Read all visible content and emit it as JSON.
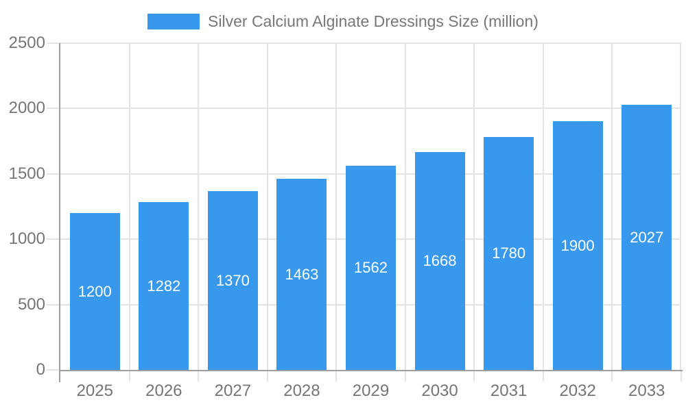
{
  "legend": {
    "items": [
      {
        "label": "Silver Calcium Alginate Dressings Size (million)",
        "color": "#3899EC"
      }
    ]
  },
  "chart_data": {
    "type": "bar",
    "categories": [
      "2025",
      "2026",
      "2027",
      "2028",
      "2029",
      "2030",
      "2031",
      "2032",
      "2033"
    ],
    "values": [
      1200,
      1282,
      1370,
      1463,
      1562,
      1668,
      1780,
      1900,
      2027
    ],
    "series": [
      {
        "name": "Silver Calcium Alginate Dressings Size (million)",
        "values": [
          1200,
          1282,
          1370,
          1463,
          1562,
          1668,
          1780,
          1900,
          2027
        ]
      }
    ],
    "title": "Silver Calcium Alginate Dressings Size (million)",
    "xlabel": "",
    "ylabel": "",
    "ylim": [
      0,
      2500
    ],
    "yticks": [
      0,
      500,
      1000,
      1500,
      2000,
      2500
    ],
    "grid": true,
    "legend_position": "top",
    "bar_label_position": "inside-center",
    "bar_color": "#3899EC",
    "bar_label_color": "#FFFFFF",
    "axis_color": "#9E9E9E",
    "grid_color": "#E3E3E3",
    "text_color": "#757575"
  }
}
